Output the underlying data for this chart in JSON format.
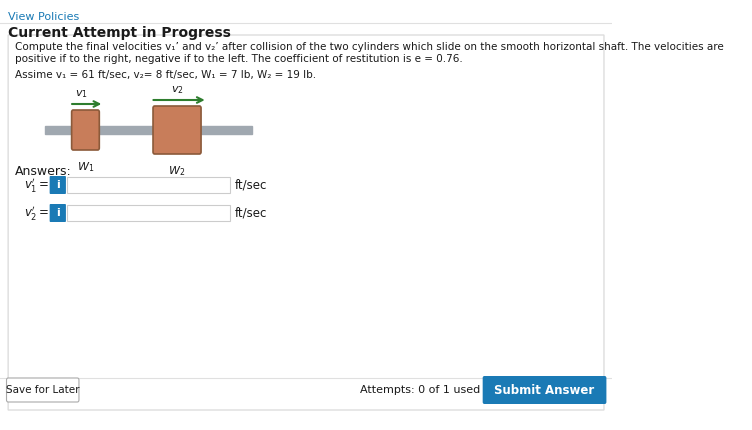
{
  "background_color": "#ffffff",
  "border_color": "#e0e0e0",
  "top_link_text": "View Policies",
  "top_link_color": "#1a7ab5",
  "header_text": "Current Attempt in Progress",
  "header_fontsize": 11,
  "problem_text_line1": "Compute the final velocities v₁’ and v₂’ after collision of the two cylinders which slide on the smooth horizontal shaft. The velocities are",
  "problem_text_line2": "positive if to the right, negative if to the left. The coefficient of restitution is e = 0.76.",
  "given_text": "Assime v₁ = 61 ft/sec, v₂= 8 ft/sec, W₁ = 7 lb, W₂ = 19 lb.",
  "answers_label": "Answers:",
  "v1_label": "v₁’ =",
  "v2_label": "v₂’ =",
  "unit_label": "ft/sec",
  "save_btn_text": "Save for Later",
  "attempts_text": "Attempts: 0 of 1 used",
  "submit_btn_text": "Submit Answer",
  "submit_btn_color": "#1a7ab5",
  "info_btn_color": "#1a7ab5",
  "shaft_color": "#a0a8b0",
  "cylinder1_color": "#c87d5a",
  "cylinder2_color": "#c87d5a",
  "arrow_color": "#2e7d2e",
  "text_color": "#1a1a1a",
  "input_border_color": "#cccccc",
  "panel_bg": "#f8f8f8",
  "panel_border": "#dddddd"
}
